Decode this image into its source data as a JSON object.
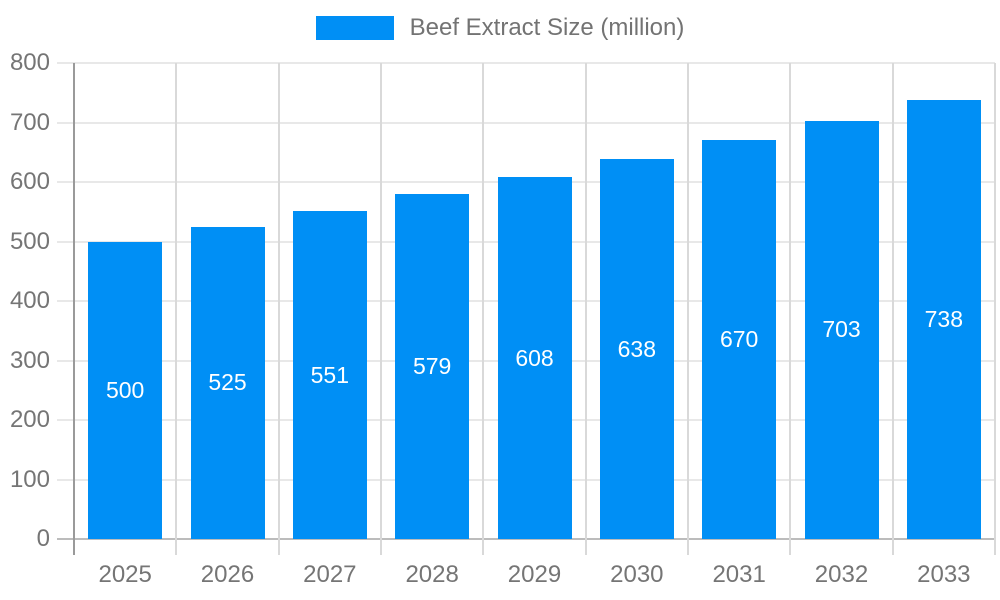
{
  "legend": {
    "label": "Beef Extract Size (million)"
  },
  "chart_data": {
    "type": "bar",
    "title": "",
    "categories": [
      "2025",
      "2026",
      "2027",
      "2028",
      "2029",
      "2030",
      "2031",
      "2032",
      "2033"
    ],
    "series": [
      {
        "name": "Beef Extract Size (million)",
        "values": [
          500,
          525,
          551,
          579,
          608,
          638,
          670,
          703,
          738
        ]
      }
    ],
    "value_labels_shown": true,
    "xlabel": "",
    "ylabel": "",
    "ylim": [
      0,
      800
    ],
    "yticks": [
      0,
      100,
      200,
      300,
      400,
      500,
      600,
      700,
      800
    ],
    "grid": true,
    "legend_position": "top",
    "colors": {
      "bar": "#008FF5",
      "value_label": "#FFFFFF",
      "axis_text": "#757575",
      "h_gridline": "#E8E8E8",
      "v_gridline": "#D9D9D9",
      "axis_line": "#9A9A9A",
      "baseline": "#BCBCBC"
    }
  }
}
